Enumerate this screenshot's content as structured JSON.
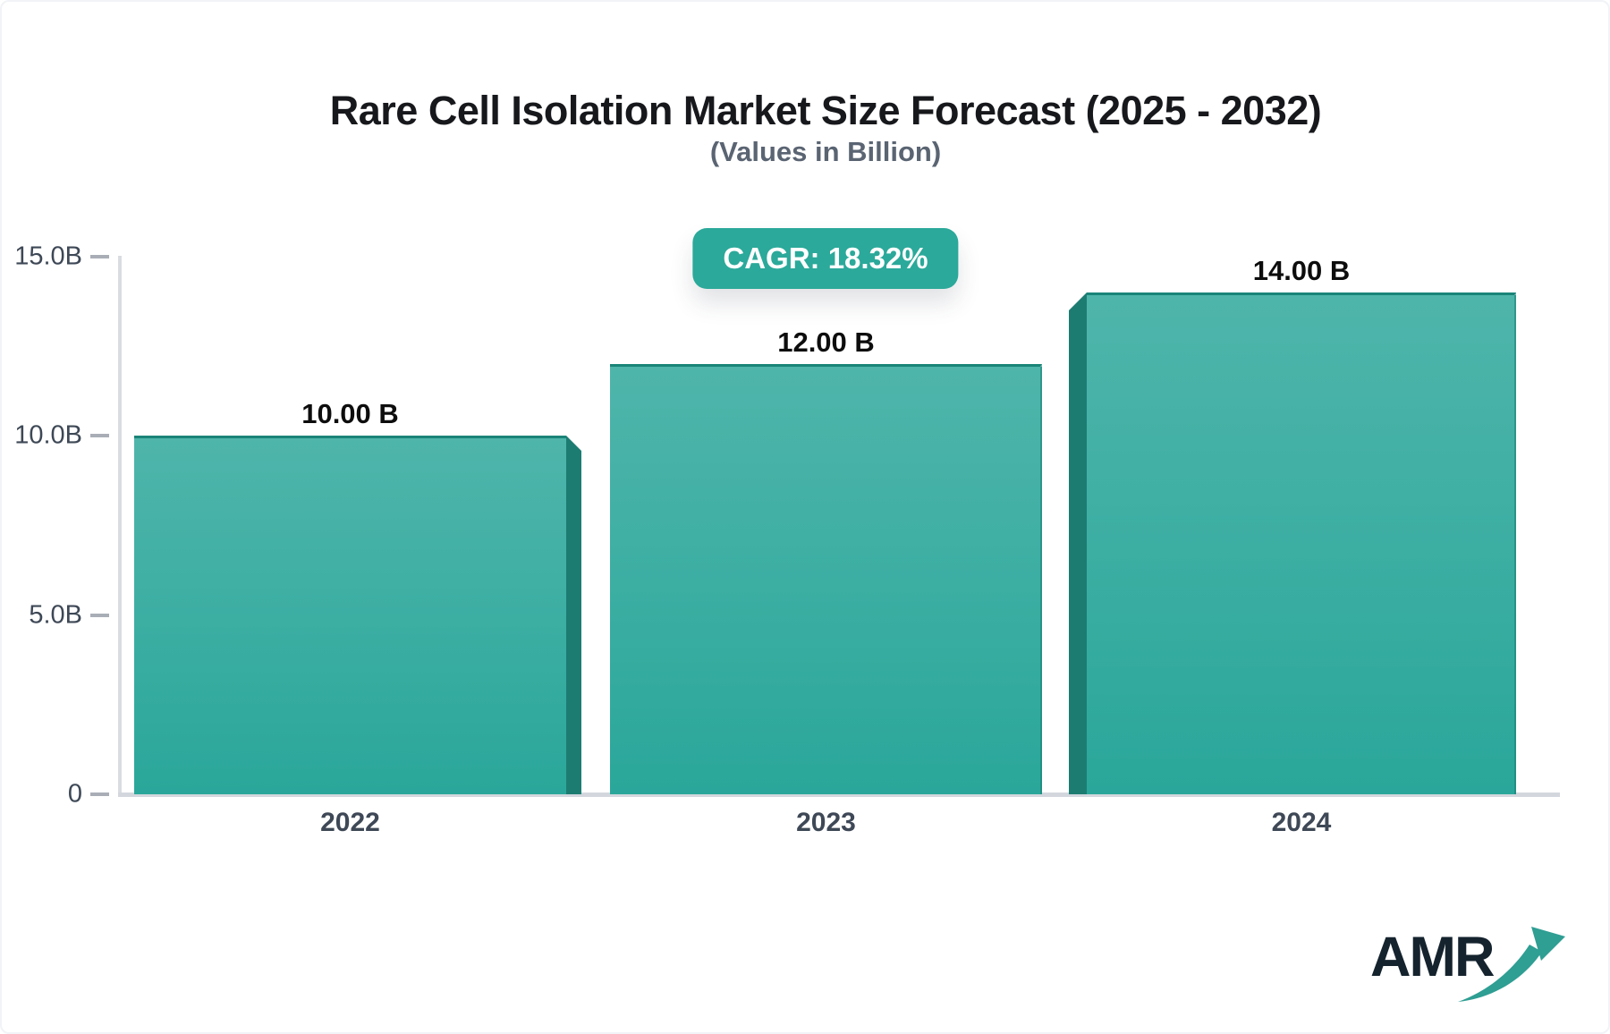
{
  "title": "Rare Cell Isolation Market Size Forecast (2025 - 2032)",
  "subtitle": "(Values in Billion)",
  "badge": {
    "label": "CAGR: 18.32%"
  },
  "chart_data": {
    "type": "bar",
    "title": "Rare Cell Isolation Market Size Forecast (2025 - 2032)",
    "subtitle": "(Values in Billion)",
    "categories": [
      "2022",
      "2023",
      "2024"
    ],
    "values": [
      10.0,
      12.0,
      14.0
    ],
    "value_labels": [
      "10.00 B",
      "12.00 B",
      "14.00 B"
    ],
    "unit": "Billion",
    "ylim": [
      0,
      15
    ],
    "yticks": [
      {
        "value": 0,
        "label": "0"
      },
      {
        "value": 5,
        "label": "5.0B"
      },
      {
        "value": 10,
        "label": "10.0B"
      },
      {
        "value": 15,
        "label": "15.0B"
      }
    ],
    "grid": false,
    "legend": null,
    "bar_color_top": "#4fb5ab",
    "bar_color_bottom": "#2aa79a",
    "bar_side_color": "#1d7c72",
    "cagr": "18.32%"
  },
  "logo": {
    "text": "AMR"
  },
  "colors": {
    "accent_teal": "#2ba99a",
    "dark_teal": "#1d7c72",
    "title_text": "#17181c",
    "subtitle_text": "#5a6472",
    "axis_text": "#3e4856",
    "axis_line": "#d9dce1",
    "logo_navy": "#15232e",
    "logo_arrow_teal": "#2f9e93"
  }
}
